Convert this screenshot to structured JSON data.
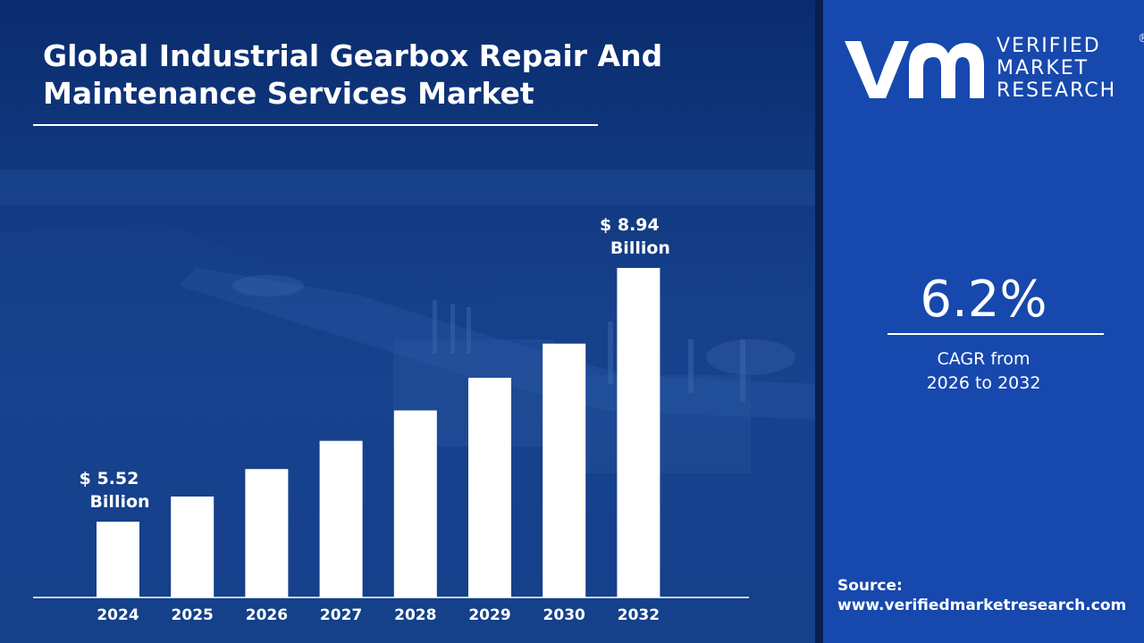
{
  "title_line1": "Global Industrial Gearbox Repair And",
  "title_line2": "Maintenance Services Market",
  "brand": {
    "line1": "VERIFIED",
    "line2": "MARKET",
    "line3": "RESEARCH",
    "reg": "®"
  },
  "cagr": {
    "value": "6.2%",
    "line1": "CAGR from",
    "line2": "2026 to 2032"
  },
  "source": {
    "label": "Source:",
    "url": "www.verifiedmarketresearch.com"
  },
  "colors": {
    "bar": "#ffffff",
    "accent_panel": "#1748ad",
    "background": "#123a82"
  },
  "chart_data": {
    "type": "bar",
    "categories": [
      "2024",
      "2025",
      "2026",
      "2027",
      "2028",
      "2029",
      "2030",
      "2032"
    ],
    "values": [
      5.52,
      5.86,
      6.23,
      6.61,
      7.02,
      7.46,
      7.92,
      8.94
    ],
    "data_labels": [
      {
        "index": 0,
        "line1": "$ 5.52",
        "line2": "Billion"
      },
      {
        "index": 7,
        "line1": "$ 8.94",
        "line2": "Billion"
      }
    ],
    "title": "Global Industrial Gearbox Repair And Maintenance Services Market",
    "xlabel": "",
    "ylabel": "",
    "ylim": [
      4.5,
      9.2
    ],
    "grid": false,
    "legend": "none"
  }
}
